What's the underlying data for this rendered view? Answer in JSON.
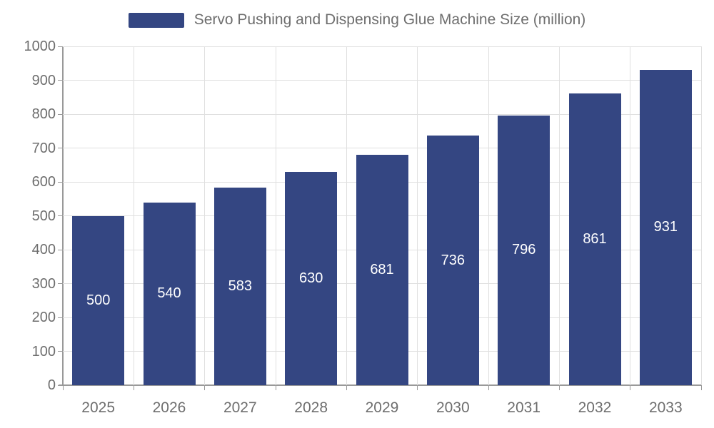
{
  "chart_data": {
    "type": "bar",
    "title": "Servo Pushing and Dispensing Glue Machine Size (million)",
    "categories": [
      "2025",
      "2026",
      "2027",
      "2028",
      "2029",
      "2030",
      "2031",
      "2032",
      "2033"
    ],
    "series": [
      {
        "name": "Servo Pushing and Dispensing Glue Machine Size (million)",
        "values": [
          500,
          540,
          583,
          630,
          681,
          736,
          796,
          861,
          931
        ]
      }
    ],
    "xlabel": "",
    "ylabel": "",
    "ylim": [
      0,
      1000
    ],
    "yticks": [
      0,
      100,
      200,
      300,
      400,
      500,
      600,
      700,
      800,
      900,
      1000
    ],
    "grid": true,
    "legend_position": "top-center",
    "value_labels": "inside-center",
    "colors": {
      "bar": "#344682",
      "grid": "#e0e0e0",
      "axis": "#999999",
      "axis_text": "#6e6e6e",
      "value_text": "#ffffff",
      "background": "#ffffff"
    }
  }
}
